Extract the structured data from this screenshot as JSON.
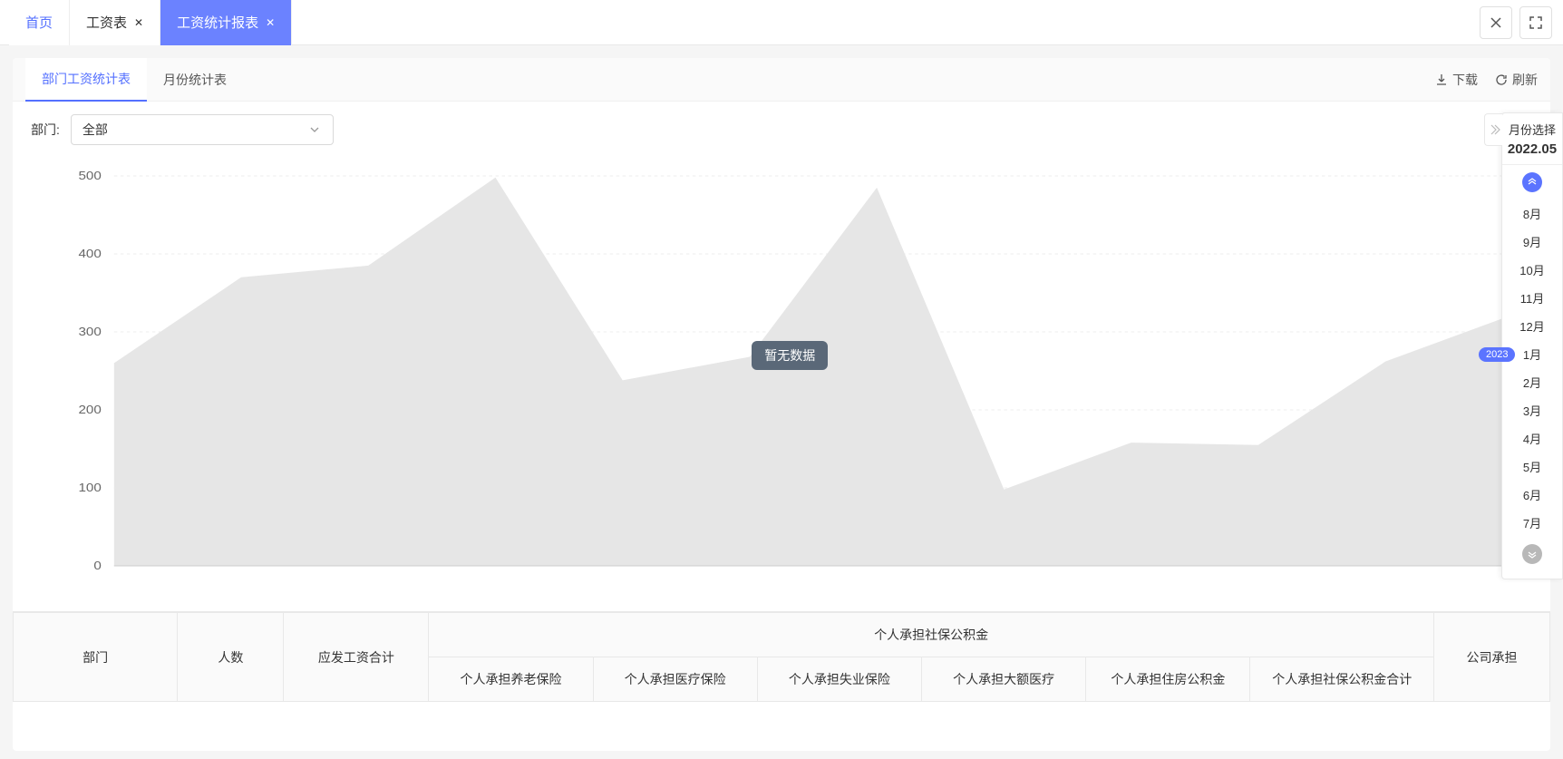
{
  "topTabs": {
    "home": "首页",
    "tab1": "工资表",
    "tab2": "工资统计报表"
  },
  "subTabs": {
    "tabA": "部门工资统计表",
    "tabB": "月份统计表"
  },
  "actions": {
    "download": "下载",
    "refresh": "刷新"
  },
  "filter": {
    "label": "部门:",
    "selected": "全部"
  },
  "chart": {
    "type": "area",
    "ylim": [
      0,
      500
    ],
    "ytick_step": 100,
    "yticks": [
      0,
      100,
      200,
      300,
      400,
      500
    ],
    "values": [
      260,
      370,
      385,
      498,
      238,
      268,
      485,
      98,
      158,
      155,
      262,
      322
    ],
    "fill_color": "#e6e6e6",
    "grid_color": "#eeeeee",
    "axis_color": "#cccccc",
    "background_color": "#ffffff",
    "label_fontsize": 13,
    "label_color": "#666666",
    "tooltip_text": "暂无数据",
    "tooltip_bg": "#5a6878",
    "tooltip_color": "#ffffff"
  },
  "table": {
    "cols_top": {
      "c0": "部门",
      "c1": "人数",
      "c2": "应发工资合计",
      "group": "个人承担社保公积金",
      "last": "公司承担"
    },
    "cols_sub": {
      "s0": "个人承担养老保险",
      "s1": "个人承担医疗保险",
      "s2": "个人承担失业保险",
      "s3": "个人承担大额医疗",
      "s4": "个人承担住房公积金",
      "s5": "个人承担社保公积金合计"
    }
  },
  "monthSide": {
    "title": "月份选择",
    "selected": "2022.05",
    "yearLabel": "2023",
    "months": [
      "8月",
      "9月",
      "10月",
      "11月",
      "12月",
      "1月",
      "2月",
      "3月",
      "4月",
      "5月",
      "6月",
      "7月"
    ],
    "yearChipIndex": 5
  },
  "colors": {
    "accent": "#5b74ff",
    "tabActiveBg": "#6b82ff"
  }
}
